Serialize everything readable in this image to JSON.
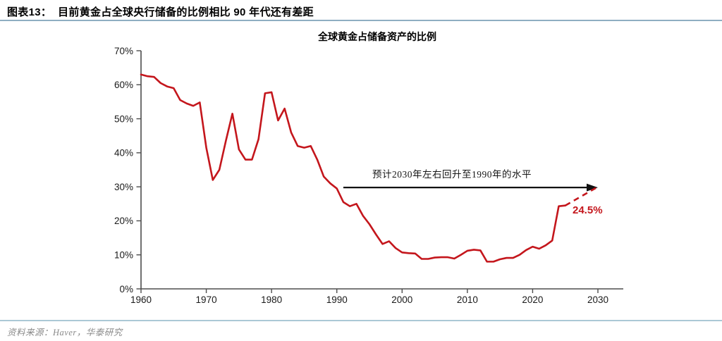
{
  "header": {
    "figure_title": "图表13：  目前黄金占全球央行储备的比例相比 90 年代还有差距"
  },
  "chart": {
    "title": "全球黄金占储备资产的比例",
    "annotation": "预计2030年左右回升至1990年的水平",
    "end_label": "24.5%"
  },
  "chart_data": {
    "type": "line",
    "title": "全球黄金占储备资产的比例",
    "xlabel": "",
    "ylabel": "",
    "xlim": [
      1960,
      2030
    ],
    "ylim": [
      0,
      70
    ],
    "grid": false,
    "x_ticks": [
      1960,
      1970,
      1980,
      1990,
      2000,
      2010,
      2020,
      2030
    ],
    "y_ticks": [
      "0%",
      "10%",
      "20%",
      "30%",
      "40%",
      "50%",
      "60%",
      "70%"
    ],
    "series": [
      {
        "name": "全球黄金占储备资产的比例",
        "color": "#C4161C",
        "points": [
          [
            1960,
            63.0
          ],
          [
            1961,
            62.5
          ],
          [
            1962,
            62.3
          ],
          [
            1963,
            60.5
          ],
          [
            1964,
            59.5
          ],
          [
            1965,
            59.0
          ],
          [
            1966,
            55.5
          ],
          [
            1967,
            54.5
          ],
          [
            1968,
            53.8
          ],
          [
            1969,
            54.8
          ],
          [
            1970,
            41.5
          ],
          [
            1971,
            32.0
          ],
          [
            1972,
            35.0
          ],
          [
            1973,
            43.5
          ],
          [
            1974,
            51.5
          ],
          [
            1975,
            41.0
          ],
          [
            1976,
            38.0
          ],
          [
            1977,
            38.0
          ],
          [
            1978,
            44.0
          ],
          [
            1979,
            57.5
          ],
          [
            1980,
            57.8
          ],
          [
            1981,
            49.5
          ],
          [
            1982,
            53.0
          ],
          [
            1983,
            46.0
          ],
          [
            1984,
            42.0
          ],
          [
            1985,
            41.5
          ],
          [
            1986,
            42.0
          ],
          [
            1987,
            38.0
          ],
          [
            1988,
            33.0
          ],
          [
            1989,
            31.0
          ],
          [
            1990,
            29.5
          ],
          [
            1991,
            25.5
          ],
          [
            1992,
            24.3
          ],
          [
            1993,
            25.0
          ],
          [
            1994,
            21.5
          ],
          [
            1995,
            19.0
          ],
          [
            1996,
            16.0
          ],
          [
            1997,
            13.2
          ],
          [
            1998,
            14.0
          ],
          [
            1999,
            12.0
          ],
          [
            2000,
            10.7
          ],
          [
            2001,
            10.5
          ],
          [
            2002,
            10.4
          ],
          [
            2003,
            8.8
          ],
          [
            2004,
            8.8
          ],
          [
            2005,
            9.2
          ],
          [
            2006,
            9.3
          ],
          [
            2007,
            9.3
          ],
          [
            2008,
            8.9
          ],
          [
            2009,
            10.0
          ],
          [
            2010,
            11.2
          ],
          [
            2011,
            11.5
          ],
          [
            2012,
            11.3
          ],
          [
            2013,
            8.0
          ],
          [
            2014,
            8.0
          ],
          [
            2015,
            8.7
          ],
          [
            2016,
            9.1
          ],
          [
            2017,
            9.1
          ],
          [
            2018,
            10.0
          ],
          [
            2019,
            11.4
          ],
          [
            2020,
            12.4
          ],
          [
            2021,
            11.8
          ],
          [
            2022,
            12.8
          ],
          [
            2023,
            14.2
          ],
          [
            2024,
            24.3
          ],
          [
            2025,
            24.5
          ]
        ]
      }
    ],
    "forecast": {
      "style": "dashed",
      "color": "#C4161C",
      "points": [
        [
          2025,
          24.5
        ],
        [
          2030,
          30.0
        ]
      ]
    },
    "annotation_arrow": {
      "text": "预计2030年左右回升至1990年的水平",
      "y_value": 29.8,
      "from_year": 1991,
      "to_year": 2030,
      "color": "#111111"
    },
    "end_label": {
      "text": "24.5%",
      "year": 2025,
      "value": 24.5
    }
  },
  "footer": {
    "source": "资料来源：Haver，华泰研究"
  }
}
